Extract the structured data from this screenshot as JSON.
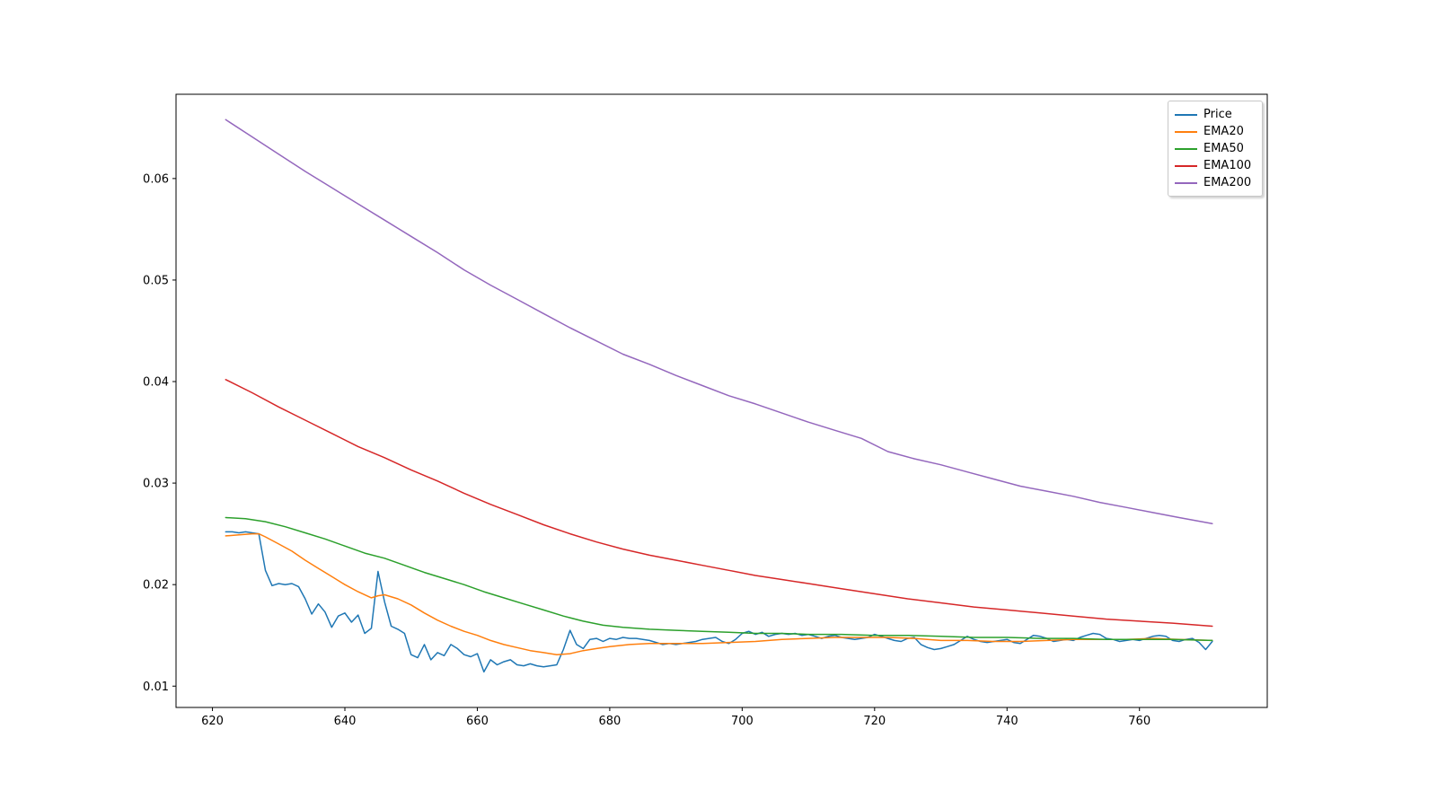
{
  "figure": {
    "background": "#ffffff"
  },
  "legend": {
    "position": "upper right",
    "entries": [
      "Price",
      "EMA20",
      "EMA50",
      "EMA100",
      "EMA200"
    ]
  },
  "chart_data": {
    "type": "line",
    "title": "",
    "xlabel": "",
    "ylabel": "",
    "grid": false,
    "legend_position": "upper right",
    "xlim": [
      614.5,
      779.3
    ],
    "ylim": [
      0.0079,
      0.0683
    ],
    "xticks": [
      620,
      640,
      660,
      680,
      700,
      720,
      740,
      760
    ],
    "xtick_labels": [
      "620",
      "640",
      "660",
      "680",
      "700",
      "720",
      "740",
      "760"
    ],
    "yticks": [
      0.01,
      0.02,
      0.03,
      0.04,
      0.05,
      0.06
    ],
    "ytick_labels": [
      "0.01",
      "0.02",
      "0.03",
      "0.04",
      "0.05",
      "0.06"
    ],
    "series": [
      {
        "name": "Price",
        "color": "#1f77b4",
        "x": [
          622,
          623,
          624,
          625,
          626,
          627,
          628,
          629,
          630,
          631,
          632,
          633,
          634,
          635,
          636,
          637,
          638,
          639,
          640,
          641,
          642,
          643,
          644,
          645,
          646,
          647,
          648,
          649,
          650,
          651,
          652,
          653,
          654,
          655,
          656,
          657,
          658,
          659,
          660,
          661,
          662,
          663,
          664,
          665,
          666,
          667,
          668,
          669,
          670,
          671,
          672,
          673,
          674,
          675,
          676,
          677,
          678,
          679,
          680,
          681,
          682,
          683,
          684,
          685,
          686,
          687,
          688,
          689,
          690,
          691,
          692,
          693,
          694,
          695,
          696,
          697,
          698,
          699,
          700,
          701,
          702,
          703,
          704,
          705,
          706,
          707,
          708,
          709,
          710,
          711,
          712,
          713,
          714,
          715,
          716,
          717,
          718,
          719,
          720,
          721,
          722,
          723,
          724,
          725,
          726,
          727,
          728,
          729,
          730,
          731,
          732,
          733,
          734,
          735,
          736,
          737,
          738,
          739,
          740,
          741,
          742,
          743,
          744,
          745,
          746,
          747,
          748,
          749,
          750,
          751,
          752,
          753,
          754,
          755,
          756,
          757,
          758,
          759,
          760,
          761,
          762,
          763,
          764,
          765,
          766,
          767,
          768,
          769,
          770,
          771
        ],
        "y": [
          0.0252,
          0.0252,
          0.0251,
          0.0252,
          0.0251,
          0.025,
          0.0214,
          0.0199,
          0.0201,
          0.02,
          0.0201,
          0.0198,
          0.0186,
          0.0171,
          0.0181,
          0.0173,
          0.0158,
          0.0169,
          0.0172,
          0.0163,
          0.017,
          0.0152,
          0.0157,
          0.0213,
          0.0183,
          0.0159,
          0.0156,
          0.0152,
          0.0131,
          0.0128,
          0.0141,
          0.0126,
          0.0133,
          0.013,
          0.0141,
          0.0137,
          0.0131,
          0.0129,
          0.0132,
          0.0114,
          0.0126,
          0.0121,
          0.0124,
          0.0126,
          0.0121,
          0.012,
          0.0122,
          0.012,
          0.0119,
          0.012,
          0.0121,
          0.0136,
          0.0155,
          0.0141,
          0.0137,
          0.0146,
          0.0147,
          0.0144,
          0.0147,
          0.0146,
          0.0148,
          0.0147,
          0.0147,
          0.0146,
          0.0145,
          0.0143,
          0.0141,
          0.0142,
          0.0141,
          0.0142,
          0.0143,
          0.0144,
          0.0146,
          0.0147,
          0.0148,
          0.0144,
          0.0142,
          0.0146,
          0.0152,
          0.0154,
          0.0151,
          0.0153,
          0.0149,
          0.0151,
          0.0152,
          0.0151,
          0.0152,
          0.015,
          0.0151,
          0.0149,
          0.0147,
          0.0149,
          0.015,
          0.0148,
          0.0147,
          0.0146,
          0.0147,
          0.0148,
          0.0151,
          0.0149,
          0.0147,
          0.0145,
          0.0144,
          0.0147,
          0.0148,
          0.0141,
          0.0138,
          0.0136,
          0.0137,
          0.0139,
          0.0141,
          0.0145,
          0.0149,
          0.0146,
          0.0144,
          0.0143,
          0.0144,
          0.0145,
          0.0146,
          0.0143,
          0.0142,
          0.0146,
          0.015,
          0.0149,
          0.0147,
          0.0144,
          0.0145,
          0.0146,
          0.0145,
          0.0148,
          0.015,
          0.0152,
          0.0151,
          0.0147,
          0.0146,
          0.0144,
          0.0145,
          0.0146,
          0.0145,
          0.0147,
          0.0149,
          0.015,
          0.0149,
          0.0145,
          0.0144,
          0.0146,
          0.0147,
          0.0143,
          0.0136,
          0.0144
        ]
      },
      {
        "name": "EMA20",
        "color": "#ff7f0e",
        "x": [
          622,
          624,
          626,
          627,
          628,
          630,
          632,
          634,
          636,
          638,
          640,
          642,
          644,
          645,
          646,
          648,
          650,
          652,
          654,
          656,
          658,
          660,
          662,
          664,
          666,
          668,
          670,
          672,
          674,
          676,
          678,
          680,
          683,
          686,
          690,
          694,
          698,
          702,
          706,
          710,
          714,
          718,
          722,
          726,
          730,
          734,
          738,
          742,
          746,
          750,
          754,
          758,
          762,
          766,
          771
        ],
        "y": [
          0.0248,
          0.0249,
          0.025,
          0.025,
          0.0247,
          0.024,
          0.0233,
          0.0224,
          0.0216,
          0.0208,
          0.02,
          0.0193,
          0.0187,
          0.0189,
          0.019,
          0.0186,
          0.018,
          0.0172,
          0.0165,
          0.0159,
          0.0154,
          0.015,
          0.0145,
          0.0141,
          0.0138,
          0.0135,
          0.0133,
          0.0131,
          0.0132,
          0.0135,
          0.0137,
          0.0139,
          0.0141,
          0.0142,
          0.0142,
          0.0142,
          0.0143,
          0.0144,
          0.0146,
          0.0147,
          0.0148,
          0.0148,
          0.0148,
          0.0147,
          0.0145,
          0.0145,
          0.0144,
          0.0144,
          0.0145,
          0.0146,
          0.0146,
          0.0146,
          0.0147,
          0.0146,
          0.0145
        ]
      },
      {
        "name": "EMA50",
        "color": "#2ca02c",
        "x": [
          622,
          625,
          628,
          631,
          634,
          637,
          640,
          643,
          646,
          649,
          652,
          655,
          658,
          661,
          664,
          667,
          670,
          673,
          676,
          679,
          682,
          686,
          690,
          694,
          698,
          702,
          706,
          710,
          715,
          720,
          725,
          730,
          735,
          740,
          745,
          750,
          755,
          760,
          765,
          771
        ],
        "y": [
          0.0266,
          0.0265,
          0.0262,
          0.0257,
          0.0251,
          0.0245,
          0.0238,
          0.0231,
          0.0226,
          0.0219,
          0.0212,
          0.0206,
          0.02,
          0.0193,
          0.0187,
          0.0181,
          0.0175,
          0.0169,
          0.0164,
          0.016,
          0.0158,
          0.0156,
          0.0155,
          0.0154,
          0.0153,
          0.0152,
          0.0152,
          0.0151,
          0.0151,
          0.015,
          0.015,
          0.0149,
          0.0148,
          0.0148,
          0.0147,
          0.0147,
          0.0146,
          0.0146,
          0.0146,
          0.0145
        ]
      },
      {
        "name": "EMA100",
        "color": "#d62728",
        "x": [
          622,
          626,
          630,
          634,
          638,
          642,
          646,
          650,
          654,
          658,
          662,
          666,
          670,
          674,
          678,
          682,
          686,
          690,
          694,
          698,
          702,
          706,
          710,
          715,
          720,
          725,
          730,
          735,
          740,
          745,
          750,
          755,
          760,
          765,
          771
        ],
        "y": [
          0.0402,
          0.0389,
          0.0375,
          0.0362,
          0.0349,
          0.0336,
          0.0325,
          0.0313,
          0.0302,
          0.029,
          0.0279,
          0.0269,
          0.0259,
          0.025,
          0.0242,
          0.0235,
          0.0229,
          0.0224,
          0.0219,
          0.0214,
          0.0209,
          0.0205,
          0.0201,
          0.0196,
          0.0191,
          0.0186,
          0.0182,
          0.0178,
          0.0175,
          0.0172,
          0.0169,
          0.0166,
          0.0164,
          0.0162,
          0.0159
        ]
      },
      {
        "name": "EMA200",
        "color": "#9467bd",
        "x": [
          622,
          626,
          630,
          634,
          638,
          642,
          646,
          650,
          654,
          658,
          662,
          666,
          670,
          674,
          678,
          682,
          686,
          690,
          694,
          698,
          702,
          706,
          710,
          714,
          718,
          722,
          726,
          730,
          734,
          738,
          742,
          746,
          750,
          754,
          758,
          762,
          766,
          771
        ],
        "y": [
          0.0658,
          0.0641,
          0.0624,
          0.0607,
          0.0591,
          0.0575,
          0.0559,
          0.0543,
          0.0527,
          0.051,
          0.0495,
          0.0481,
          0.0467,
          0.0453,
          0.044,
          0.0427,
          0.0417,
          0.0406,
          0.0396,
          0.0386,
          0.0378,
          0.0369,
          0.036,
          0.0352,
          0.0344,
          0.0331,
          0.0324,
          0.0318,
          0.0311,
          0.0304,
          0.0297,
          0.0292,
          0.0287,
          0.0281,
          0.0276,
          0.0271,
          0.0266,
          0.026
        ]
      }
    ]
  }
}
